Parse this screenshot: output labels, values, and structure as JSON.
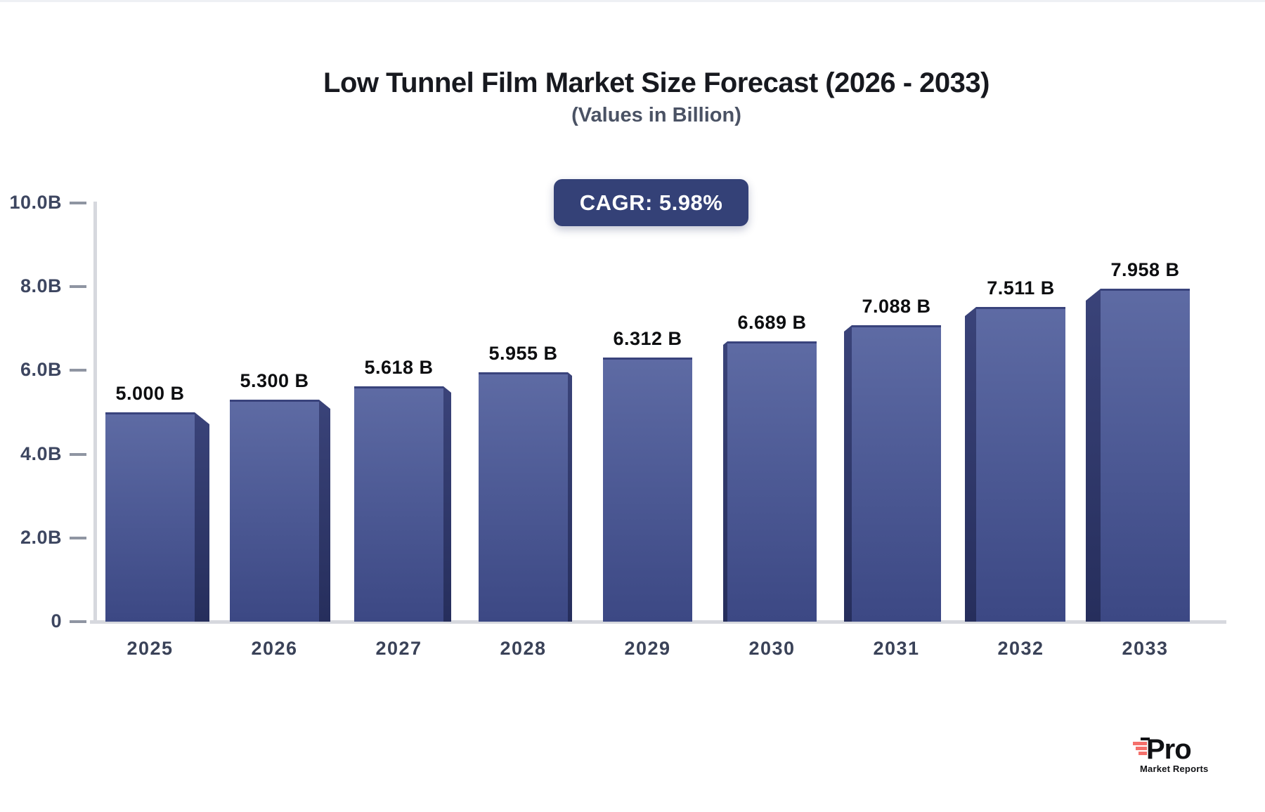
{
  "header": {
    "title": "Low Tunnel Film Market Size Forecast (2026 - 2033)",
    "subtitle": "(Values in Billion)"
  },
  "badge": {
    "label": "CAGR: 5.98%",
    "bg": "#344177",
    "text_color": "#ffffff"
  },
  "chart_data": {
    "type": "bar",
    "title": "Low Tunnel Film Market Size Forecast (2026 - 2033)",
    "subtitle": "(Values in Billion)",
    "cagr_percent": 5.98,
    "categories": [
      "2025",
      "2026",
      "2027",
      "2028",
      "2029",
      "2030",
      "2031",
      "2032",
      "2033"
    ],
    "values": [
      5.0,
      5.3,
      5.618,
      5.955,
      6.312,
      6.689,
      7.088,
      7.511,
      7.958
    ],
    "value_labels": [
      "5.000 B",
      "5.300 B",
      "5.618 B",
      "5.955 B",
      "6.312 B",
      "6.689 B",
      "7.088 B",
      "7.511 B",
      "7.958 B"
    ],
    "xlabel": "",
    "ylabel": "",
    "ylim": [
      0,
      10
    ],
    "y_ticks": [
      {
        "value": 10,
        "label": "10.0B"
      },
      {
        "value": 8,
        "label": "8.0B"
      },
      {
        "value": 6,
        "label": "6.0B"
      },
      {
        "value": 4,
        "label": "4.0B"
      },
      {
        "value": 2,
        "label": "2.0B"
      },
      {
        "value": 0,
        "label": "0"
      }
    ],
    "grid": false,
    "legend_position": "none",
    "bar_style": "3d-perspective",
    "colors": {
      "bar_face_top": "#5e6ba4",
      "bar_face_bottom": "#3c4884",
      "bar_side_top": "#3a4379",
      "bar_side_bottom": "#262e5c",
      "axis_line": "#d6d8de",
      "tick_dash": "#8f95a2",
      "tick_text": "#3d4660",
      "value_text": "#0d0e10"
    }
  },
  "logo": {
    "word": "Pro",
    "subtext": "Market Reports",
    "accent": "#f4706b"
  }
}
